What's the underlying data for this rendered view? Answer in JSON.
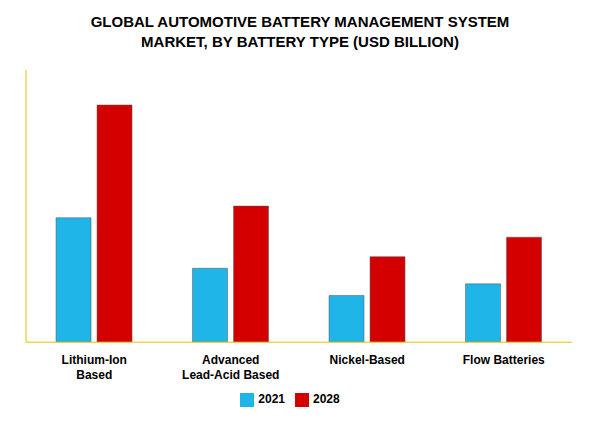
{
  "chart_data": {
    "type": "bar",
    "title": "GLOBAL AUTOMOTIVE BATTERY MANAGEMENT SYSTEM MARKET, BY BATTERY TYPE (USD BILLION)",
    "categories": [
      "Lithium-Ion Based",
      "Advanced Lead-Acid Based",
      "Nickel-Based",
      "Flow Batteries"
    ],
    "series": [
      {
        "name": "2021",
        "color": "#1fb5e8",
        "values": [
          3.2,
          1.9,
          1.2,
          1.5
        ]
      },
      {
        "name": "2028",
        "color": "#d40000",
        "values": [
          6.1,
          3.5,
          2.2,
          2.7
        ]
      }
    ],
    "ylim": [
      0,
      7
    ],
    "grid": false,
    "legend": "bottom",
    "tick_labels": "x"
  }
}
